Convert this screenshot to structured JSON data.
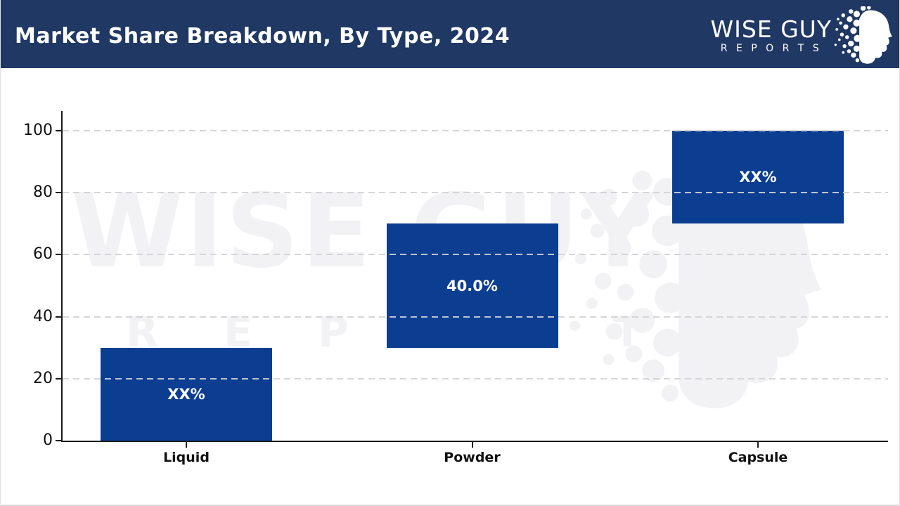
{
  "header": {
    "title": "Market Share Breakdown, By Type, 2024",
    "bg_color": "#1F3864",
    "logo": {
      "line1": "WISE GUY",
      "line2": "R E P O R T S"
    }
  },
  "watermark": {
    "line1": "WISE GUY",
    "line2": "R E P O R T S"
  },
  "chart_data": {
    "type": "bar",
    "variant": "floating-segment-waterfall",
    "title": "Market Share Breakdown, By Type, 2024",
    "categories": [
      "Liquid",
      "Powder",
      "Capsule"
    ],
    "bars": [
      {
        "category": "Liquid",
        "start": 0,
        "end": 30,
        "label": "XX%"
      },
      {
        "category": "Powder",
        "start": 30,
        "end": 70,
        "label": "40.0%"
      },
      {
        "category": "Capsule",
        "start": 70,
        "end": 100,
        "label": "XX%"
      }
    ],
    "xlabel": "",
    "ylabel": "",
    "ylim": [
      0,
      105
    ],
    "yticks": [
      0,
      20,
      40,
      60,
      80,
      100
    ],
    "grid": "horizontal-dashed",
    "legend": "none",
    "bar_color": "#0B3D91",
    "bar_label_color": "#FFFFFF",
    "axis_color": "#1a1a1a",
    "gridline_color": "#D8D8D8"
  }
}
